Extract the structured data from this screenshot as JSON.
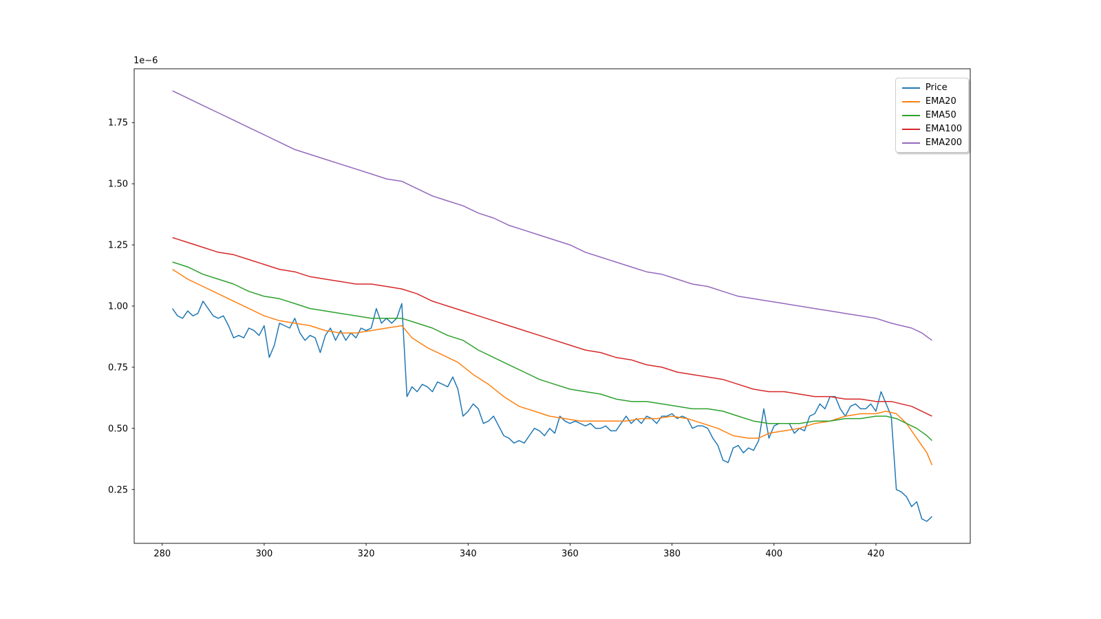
{
  "chart_data": {
    "type": "line",
    "title": "",
    "xlabel": "",
    "ylabel": "",
    "offset_text": "1e−6",
    "value_scale": "values are ×1e-6",
    "xlim": [
      274.5,
      438.5
    ],
    "ylim": [
      0.03,
      1.97
    ],
    "grid": false,
    "legend_position": "upper right",
    "x_ticks": [
      {
        "value": 280,
        "label": "280"
      },
      {
        "value": 300,
        "label": "300"
      },
      {
        "value": 320,
        "label": "320"
      },
      {
        "value": 340,
        "label": "340"
      },
      {
        "value": 360,
        "label": "360"
      },
      {
        "value": 380,
        "label": "380"
      },
      {
        "value": 400,
        "label": "400"
      },
      {
        "value": 420,
        "label": "420"
      }
    ],
    "y_ticks": [
      {
        "value": 0.25,
        "label": "0.25"
      },
      {
        "value": 0.5,
        "label": "0.50"
      },
      {
        "value": 0.75,
        "label": "0.75"
      },
      {
        "value": 1.0,
        "label": "1.00"
      },
      {
        "value": 1.25,
        "label": "1.25"
      },
      {
        "value": 1.5,
        "label": "1.50"
      },
      {
        "value": 1.75,
        "label": "1.75"
      }
    ],
    "series": [
      {
        "name": "Price",
        "color": "#1f77b4",
        "x_start": 282,
        "x_step": 1,
        "y": [
          0.99,
          0.96,
          0.95,
          0.98,
          0.96,
          0.97,
          1.02,
          0.99,
          0.96,
          0.95,
          0.96,
          0.92,
          0.87,
          0.88,
          0.87,
          0.91,
          0.9,
          0.88,
          0.92,
          0.79,
          0.84,
          0.93,
          0.92,
          0.91,
          0.95,
          0.89,
          0.86,
          0.88,
          0.87,
          0.81,
          0.88,
          0.91,
          0.86,
          0.9,
          0.86,
          0.89,
          0.87,
          0.91,
          0.9,
          0.91,
          0.99,
          0.93,
          0.95,
          0.93,
          0.95,
          1.01,
          0.63,
          0.67,
          0.65,
          0.68,
          0.67,
          0.65,
          0.69,
          0.68,
          0.67,
          0.71,
          0.66,
          0.55,
          0.57,
          0.6,
          0.58,
          0.52,
          0.53,
          0.55,
          0.51,
          0.47,
          0.46,
          0.44,
          0.45,
          0.44,
          0.47,
          0.5,
          0.49,
          0.47,
          0.5,
          0.48,
          0.55,
          0.53,
          0.52,
          0.53,
          0.52,
          0.51,
          0.52,
          0.5,
          0.5,
          0.51,
          0.49,
          0.49,
          0.52,
          0.55,
          0.52,
          0.54,
          0.52,
          0.55,
          0.54,
          0.52,
          0.55,
          0.55,
          0.56,
          0.54,
          0.55,
          0.54,
          0.5,
          0.51,
          0.51,
          0.5,
          0.46,
          0.43,
          0.37,
          0.36,
          0.42,
          0.43,
          0.4,
          0.42,
          0.41,
          0.45,
          0.58,
          0.46,
          0.51,
          0.52,
          0.52,
          0.52,
          0.48,
          0.5,
          0.49,
          0.55,
          0.56,
          0.6,
          0.58,
          0.63,
          0.63,
          0.58,
          0.55,
          0.59,
          0.6,
          0.58,
          0.58,
          0.6,
          0.57,
          0.65,
          0.6,
          0.55,
          0.25,
          0.24,
          0.22,
          0.18,
          0.2,
          0.13,
          0.12,
          0.14
        ]
      },
      {
        "name": "EMA20",
        "color": "#ff7f0e",
        "x": [
          282,
          285,
          288,
          291,
          294,
          297,
          300,
          303,
          306,
          309,
          312,
          315,
          318,
          321,
          324,
          327,
          329,
          332,
          335,
          338,
          341,
          344,
          347,
          350,
          353,
          356,
          359,
          362,
          365,
          368,
          371,
          374,
          377,
          380,
          383,
          386,
          389,
          392,
          395,
          397,
          399,
          402,
          405,
          408,
          411,
          414,
          417,
          420,
          422,
          424,
          426,
          428,
          430,
          431
        ],
        "y": [
          1.15,
          1.11,
          1.08,
          1.05,
          1.02,
          0.99,
          0.96,
          0.94,
          0.93,
          0.92,
          0.9,
          0.89,
          0.89,
          0.9,
          0.91,
          0.92,
          0.87,
          0.83,
          0.8,
          0.77,
          0.72,
          0.68,
          0.63,
          0.59,
          0.57,
          0.55,
          0.54,
          0.53,
          0.53,
          0.53,
          0.53,
          0.54,
          0.54,
          0.55,
          0.54,
          0.52,
          0.5,
          0.47,
          0.46,
          0.46,
          0.48,
          0.49,
          0.5,
          0.52,
          0.53,
          0.55,
          0.56,
          0.56,
          0.57,
          0.56,
          0.52,
          0.46,
          0.4,
          0.35
        ]
      },
      {
        "name": "EMA50",
        "color": "#2ca02c",
        "x": [
          282,
          285,
          288,
          291,
          294,
          297,
          300,
          303,
          306,
          309,
          312,
          315,
          318,
          321,
          324,
          327,
          330,
          333,
          336,
          339,
          342,
          345,
          348,
          351,
          354,
          357,
          360,
          363,
          366,
          369,
          372,
          375,
          378,
          381,
          384,
          387,
          390,
          393,
          396,
          399,
          402,
          405,
          408,
          411,
          414,
          417,
          420,
          422,
          424,
          426,
          428,
          430,
          431
        ],
        "y": [
          1.18,
          1.16,
          1.13,
          1.11,
          1.09,
          1.06,
          1.04,
          1.03,
          1.01,
          0.99,
          0.98,
          0.97,
          0.96,
          0.95,
          0.95,
          0.95,
          0.93,
          0.91,
          0.88,
          0.86,
          0.82,
          0.79,
          0.76,
          0.73,
          0.7,
          0.68,
          0.66,
          0.65,
          0.64,
          0.62,
          0.61,
          0.61,
          0.6,
          0.59,
          0.58,
          0.58,
          0.57,
          0.55,
          0.53,
          0.52,
          0.52,
          0.52,
          0.53,
          0.53,
          0.54,
          0.54,
          0.55,
          0.55,
          0.54,
          0.52,
          0.5,
          0.47,
          0.45
        ]
      },
      {
        "name": "EMA100",
        "color": "#d62728",
        "x": [
          282,
          285,
          288,
          291,
          294,
          297,
          300,
          303,
          306,
          309,
          312,
          315,
          318,
          321,
          324,
          327,
          330,
          333,
          336,
          339,
          342,
          345,
          348,
          351,
          354,
          357,
          360,
          363,
          366,
          369,
          372,
          375,
          378,
          381,
          384,
          387,
          390,
          393,
          396,
          399,
          402,
          405,
          408,
          411,
          414,
          417,
          420,
          423,
          425,
          427,
          429,
          431
        ],
        "y": [
          1.28,
          1.26,
          1.24,
          1.22,
          1.21,
          1.19,
          1.17,
          1.15,
          1.14,
          1.12,
          1.11,
          1.1,
          1.09,
          1.09,
          1.08,
          1.07,
          1.05,
          1.02,
          1.0,
          0.98,
          0.96,
          0.94,
          0.92,
          0.9,
          0.88,
          0.86,
          0.84,
          0.82,
          0.81,
          0.79,
          0.78,
          0.76,
          0.75,
          0.73,
          0.72,
          0.71,
          0.7,
          0.68,
          0.66,
          0.65,
          0.65,
          0.64,
          0.63,
          0.63,
          0.62,
          0.62,
          0.61,
          0.61,
          0.6,
          0.59,
          0.57,
          0.55
        ]
      },
      {
        "name": "EMA200",
        "color": "#9467bd",
        "x": [
          282,
          285,
          288,
          291,
          294,
          297,
          300,
          303,
          306,
          309,
          312,
          315,
          318,
          321,
          324,
          327,
          330,
          333,
          336,
          339,
          342,
          345,
          348,
          351,
          354,
          357,
          360,
          363,
          366,
          369,
          372,
          375,
          378,
          381,
          384,
          387,
          390,
          393,
          396,
          399,
          402,
          405,
          408,
          411,
          414,
          417,
          420,
          423,
          425,
          427,
          429,
          431
        ],
        "y": [
          1.88,
          1.85,
          1.82,
          1.79,
          1.76,
          1.73,
          1.7,
          1.67,
          1.64,
          1.62,
          1.6,
          1.58,
          1.56,
          1.54,
          1.52,
          1.51,
          1.48,
          1.45,
          1.43,
          1.41,
          1.38,
          1.36,
          1.33,
          1.31,
          1.29,
          1.27,
          1.25,
          1.22,
          1.2,
          1.18,
          1.16,
          1.14,
          1.13,
          1.11,
          1.09,
          1.08,
          1.06,
          1.04,
          1.03,
          1.02,
          1.01,
          1.0,
          0.99,
          0.98,
          0.97,
          0.96,
          0.95,
          0.93,
          0.92,
          0.91,
          0.89,
          0.86
        ]
      }
    ]
  }
}
